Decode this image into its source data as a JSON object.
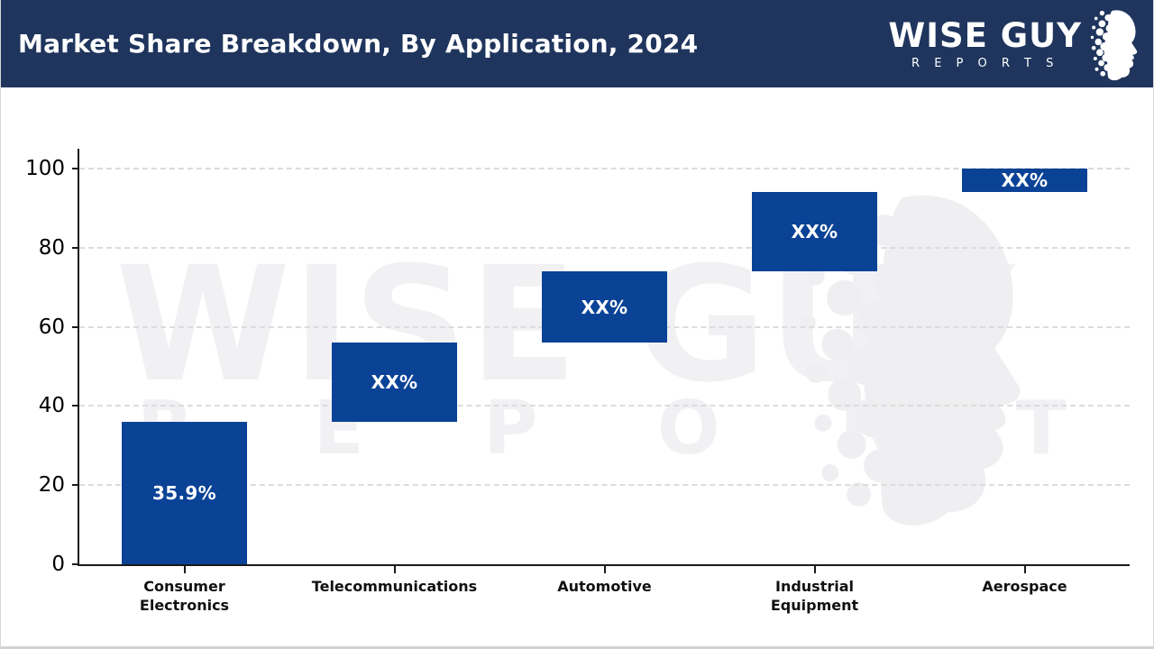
{
  "header": {
    "title": "Market Share Breakdown, By Application, 2024",
    "logo": {
      "name": "WISE GUY",
      "sub": "R E P O R T S"
    }
  },
  "watermark": {
    "line1": "WISE GUY",
    "line2": "R E P O R T S"
  },
  "colors": {
    "header_bg": "#1f355d",
    "bar": "#0a4296",
    "bar_label": "#ffffff",
    "grid": "#dcdcdc",
    "axis": "#1a1a1a",
    "watermark": "#f1f1f4"
  },
  "chart_data": {
    "type": "bar",
    "subtype": "waterfall",
    "title": "Market Share Breakdown, By Application, 2024",
    "xlabel": "",
    "ylabel": "",
    "ylim": [
      0,
      105
    ],
    "yticks": [
      0,
      20,
      40,
      60,
      80,
      100
    ],
    "grid": "horizontal-dashed",
    "legend": "none",
    "categories": [
      "Consumer Electronics",
      "Telecommunications",
      "Automotive",
      "Industrial Equipment",
      "Aerospace"
    ],
    "category_lines": [
      [
        "Consumer",
        "Electronics"
      ],
      [
        "Telecommunications"
      ],
      [
        "Automotive"
      ],
      [
        "Industrial",
        "Equipment"
      ],
      [
        "Aerospace"
      ]
    ],
    "segments": [
      {
        "category": "Consumer Electronics",
        "start": 0,
        "end": 35.9,
        "label": "35.9%"
      },
      {
        "category": "Telecommunications",
        "start": 35.9,
        "end": 56,
        "label": "XX%"
      },
      {
        "category": "Automotive",
        "start": 56,
        "end": 74,
        "label": "XX%"
      },
      {
        "category": "Industrial Equipment",
        "start": 74,
        "end": 94,
        "label": "XX%"
      },
      {
        "category": "Aerospace",
        "start": 94,
        "end": 100,
        "label": "XX%"
      }
    ]
  }
}
